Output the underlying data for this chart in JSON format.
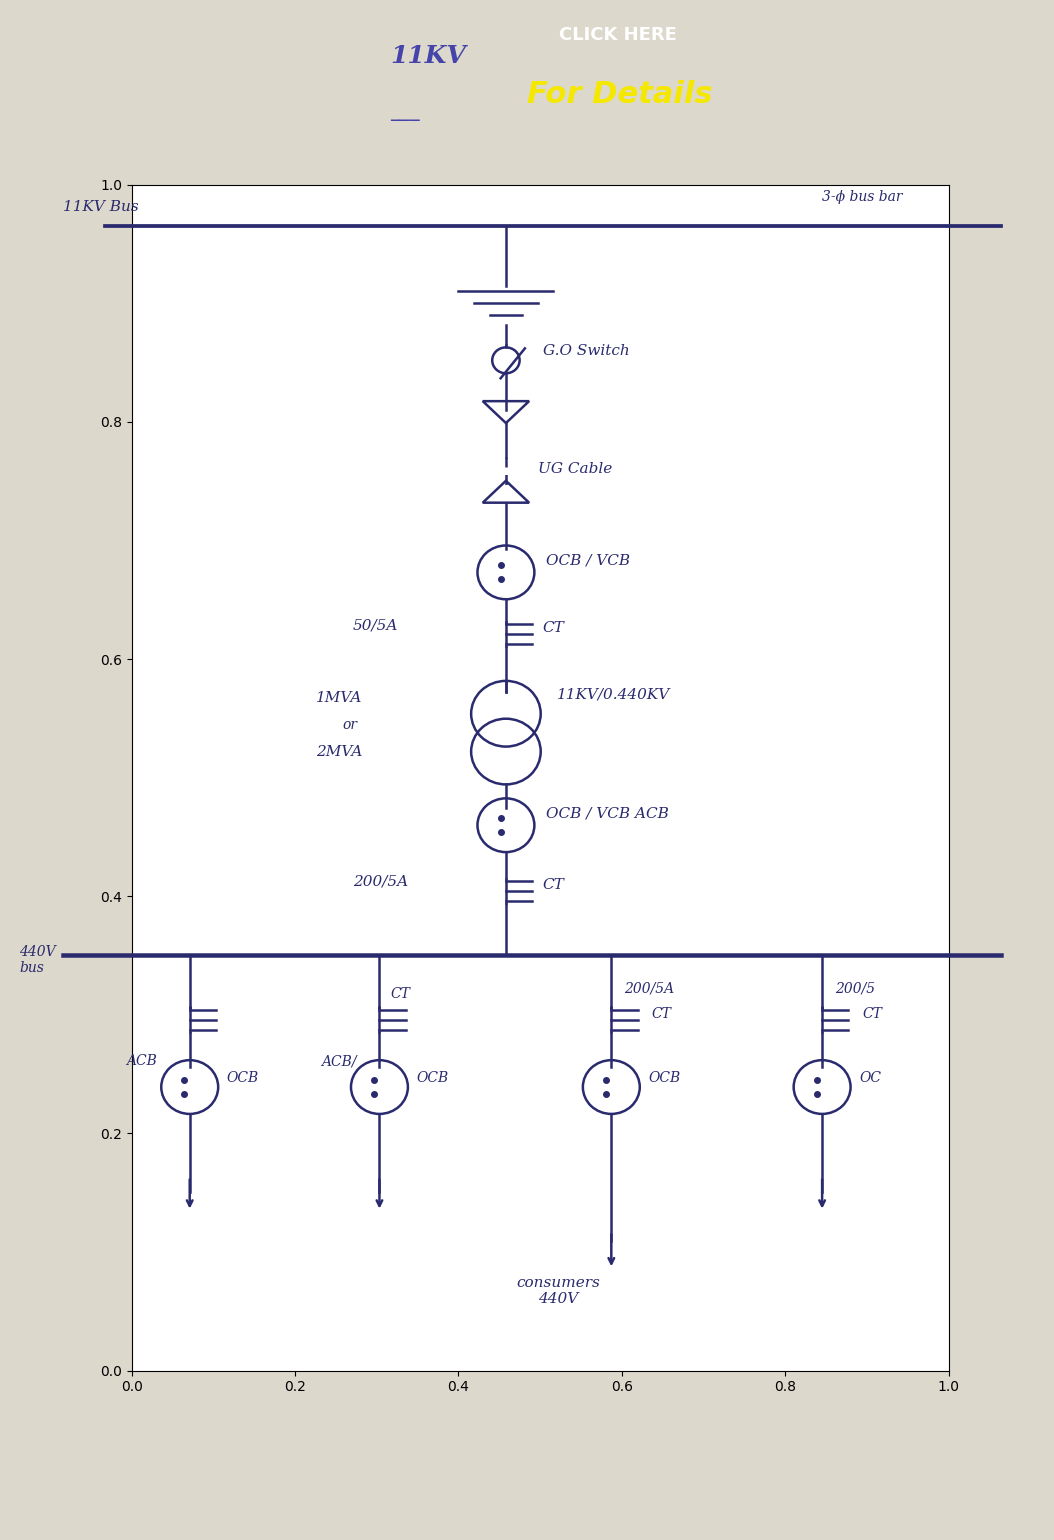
{
  "bg_header_color": "#1a1a1a",
  "bg_diagram_color": "#ddd8cc",
  "header_text1": "CLICK HERE",
  "header_text2": "For Details",
  "header_text1_color": "#ffffff",
  "header_text2_color": "#f5e800",
  "title_handwritten": "11KV",
  "diagram_line_color": "#2a2a6e",
  "diagram_bg": "#d8d5c8",
  "labels": {
    "bus_label": "11KV Bus",
    "bus_bar_label": "3-ϕ bus bar",
    "go_switch": "G.O Switch",
    "ug_cable": "UG Cable",
    "ocb_vcb": "OCB / VCB",
    "ct1_label": "50/5A",
    "ct1": "CT",
    "transformer": "11KV/0.440KV",
    "mva": "1MVA",
    "or": "or",
    "mva2": "2MVA",
    "ocb_acb": "OCB / VCB ACB",
    "ct2_label": "200/5A",
    "ct2": "CT",
    "bus440": "440V\nbus",
    "ct3": "CT",
    "ct4_label": "200/5A",
    "ct4": "CT",
    "ct5_label": "200/5",
    "ct5": "CT",
    "acb_label": "ACB",
    "ocb1": "OCB",
    "acb_ocb": "ACB/",
    "ocb2": "OCB",
    "ocb3": "OCB",
    "ocb4": "OC",
    "consumers": "consumers\n440V"
  }
}
